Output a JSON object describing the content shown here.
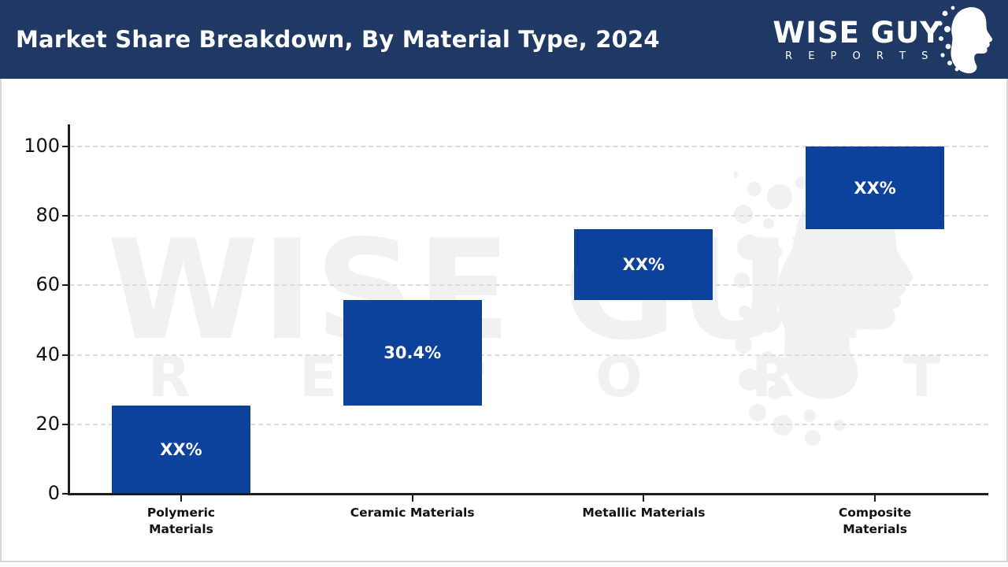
{
  "header": {
    "title": "Market Share Breakdown, By Material Type, 2024",
    "bg_color": "#1f3864",
    "logo": {
      "line1": "WISE GUY",
      "line2": "R E P O R T S"
    }
  },
  "watermark": {
    "line1": "WISE GUY",
    "line2": "R E P O R T S",
    "color": "#f1f1f4"
  },
  "chart_data": {
    "type": "bar",
    "subtype": "floating-waterfall",
    "title": "Market Share Breakdown, By Material Type, 2024",
    "xlabel": "",
    "ylabel": "",
    "ylim": [
      0,
      100
    ],
    "yticks": [
      0,
      20,
      40,
      60,
      80,
      100
    ],
    "grid": "dashed-horizontal",
    "legend": "none",
    "bar_color": "#0c429c",
    "bar_label_color": "#ffffff",
    "categories": [
      "Polymeric Materials",
      "Ceramic Materials",
      "Metallic Materials",
      "Composite Materials"
    ],
    "bars": [
      {
        "category": "Polymeric Materials",
        "label_lines": [
          "Polymeric",
          "Materials"
        ],
        "start": 0,
        "end": 25.3,
        "height": 25.3,
        "label": "XX%"
      },
      {
        "category": "Ceramic Materials",
        "label_lines": [
          "Ceramic Materials"
        ],
        "start": 25.3,
        "end": 55.7,
        "height": 30.4,
        "label": "30.4%"
      },
      {
        "category": "Metallic Materials",
        "label_lines": [
          "Metallic Materials"
        ],
        "start": 55.7,
        "end": 76.1,
        "height": 20.4,
        "label": "XX%"
      },
      {
        "category": "Composite Materials",
        "label_lines": [
          "Composite",
          "Materials"
        ],
        "start": 76.1,
        "end": 100,
        "height": 23.9,
        "label": "XX%"
      }
    ]
  }
}
